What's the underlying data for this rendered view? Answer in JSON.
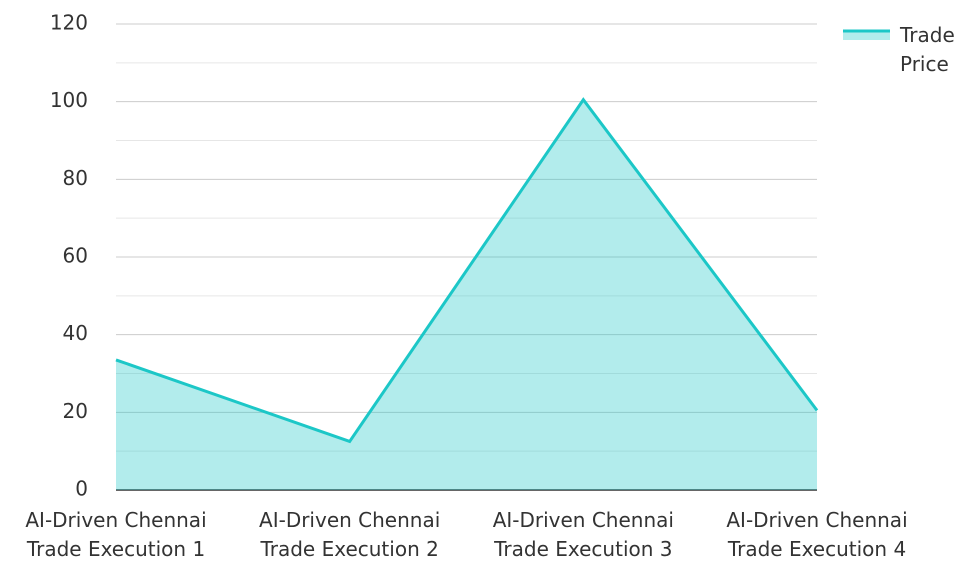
{
  "chart_data": {
    "type": "area",
    "categories": [
      "AI-Driven Chennai Trade Execution 1",
      "AI-Driven Chennai Trade Execution 2",
      "AI-Driven Chennai Trade Execution 3",
      "AI-Driven Chennai Trade Execution 4"
    ],
    "series": [
      {
        "name": "Trade Price",
        "color": "#1cc7c7",
        "values": [
          33.5,
          12.5,
          100.5,
          20.5
        ]
      }
    ],
    "ylim": [
      0,
      120
    ],
    "yticks": [
      0,
      20,
      40,
      60,
      80,
      100,
      120
    ],
    "grid": true,
    "legend": "top-right"
  }
}
